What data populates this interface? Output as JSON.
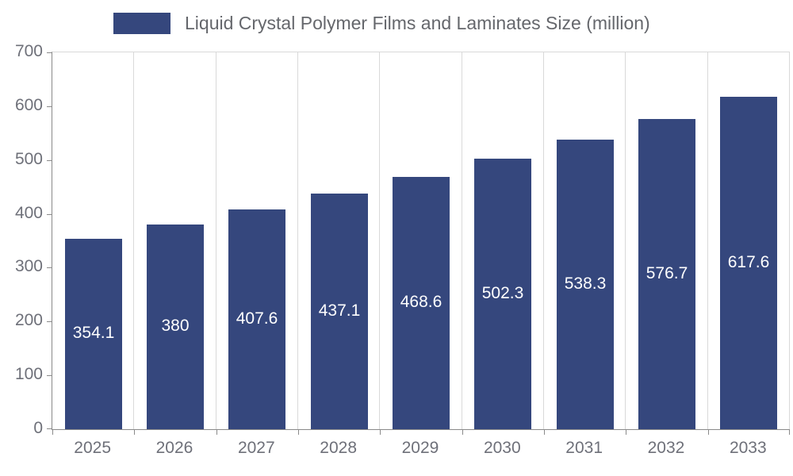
{
  "chart_data": {
    "type": "bar",
    "title": "Liquid Crystal Polymer Films and Laminates Size (million)",
    "categories": [
      "2025",
      "2026",
      "2027",
      "2028",
      "2029",
      "2030",
      "2031",
      "2032",
      "2033"
    ],
    "values": [
      354.1,
      380,
      407.6,
      437.1,
      468.6,
      502.3,
      538.3,
      576.7,
      617.6
    ],
    "value_labels": [
      "354.1",
      "380",
      "407.6",
      "437.1",
      "468.6",
      "502.3",
      "538.3",
      "576.7",
      "617.6"
    ],
    "xlabel": "",
    "ylabel": "",
    "ylim": [
      0,
      700
    ],
    "yticks": [
      "0",
      "100",
      "200",
      "300",
      "400",
      "500",
      "600",
      "700"
    ],
    "legend_position": "top",
    "grid": "vertical-splitlines",
    "colors": {
      "bar": "#35477d",
      "axis_label": "#6e7079",
      "grid_line": "#d9d9d9",
      "axis_line": "#8a8a8a",
      "value_label": "#ffffff",
      "background": "#ffffff"
    }
  }
}
